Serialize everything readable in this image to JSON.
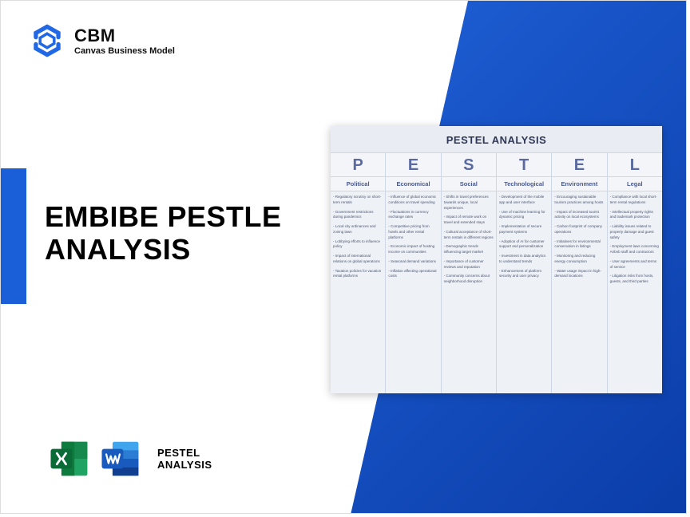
{
  "brand": {
    "name": "CBM",
    "subtitle": "Canvas Business Model",
    "logo_color": "#2168e6"
  },
  "hero": {
    "title_line1": "EMBIBE PESTLE",
    "title_line2": "ANALYSIS"
  },
  "table": {
    "title": "PESTEL ANALYSIS",
    "header_bg": "#f3f5f9",
    "letter_color": "#5a6aa0",
    "columns": [
      {
        "letter": "P",
        "category": "Political",
        "items": [
          "Regulatory scrutiny on short-term rentals",
          "Government restrictions during pandemics",
          "Local city ordinances and zoning laws",
          "Lobbying efforts to influence policy",
          "Impact of international relations on global operations",
          "Taxation policies for vacation rental platforms"
        ]
      },
      {
        "letter": "E",
        "category": "Economical",
        "items": [
          "Influence of global economic conditions on travel spending",
          "Fluctuations in currency exchange rates",
          "Competitive pricing from hotels and other rental platforms",
          "Economic impact of hosting income on communities",
          "Seasonal demand variations",
          "Inflation affecting operational costs"
        ]
      },
      {
        "letter": "S",
        "category": "Social",
        "items": [
          "Shifts in travel preferences towards unique, local experiences",
          "Impact of remote work on travel and extended stays",
          "Cultural acceptance of short-term rentals in different regions",
          "Demographic trends influencing target market",
          "Importance of customer reviews and reputation",
          "Community concerns about neighborhood disruption"
        ]
      },
      {
        "letter": "T",
        "category": "Technological",
        "items": [
          "Development of the mobile app and user interface",
          "Use of machine learning for dynamic pricing",
          "Implementation of secure payment systems",
          "Adoption of AI for customer support and personalization",
          "Investment in data analytics to understand trends",
          "Enhancement of platform security and user privacy"
        ]
      },
      {
        "letter": "E",
        "category": "Environment",
        "items": [
          "Encouraging sustainable tourism practices among hosts",
          "Impact of increased tourist activity on local ecosystems",
          "Carbon footprint of company operations",
          "Initiatives for environmental conservation in listings",
          "Monitoring and reducing energy consumption",
          "Water usage impact in high-demand locations"
        ]
      },
      {
        "letter": "L",
        "category": "Legal",
        "items": [
          "Compliance with local short-term rental regulations",
          "Intellectual property rights and trademark protection",
          "Liability issues related to property damage and guest safety",
          "Employment laws concerning Airbnb staff and contractors",
          "User agreements and terms of service",
          "Litigation risks from hosts, guests, and third parties"
        ]
      }
    ]
  },
  "footer": {
    "label_line1": "PESTEL",
    "label_line2": "ANALYSIS",
    "excel_colors": {
      "dark": "#0d7a3e",
      "light": "#1fa463"
    },
    "word_colors": {
      "dark": "#124aa0",
      "light": "#2b7cd3"
    }
  },
  "colors": {
    "wedge_start": "#1e5fd6",
    "wedge_end": "#0b3da8",
    "tab": "#1a5ed8",
    "card_bg": "#e9edf3"
  }
}
